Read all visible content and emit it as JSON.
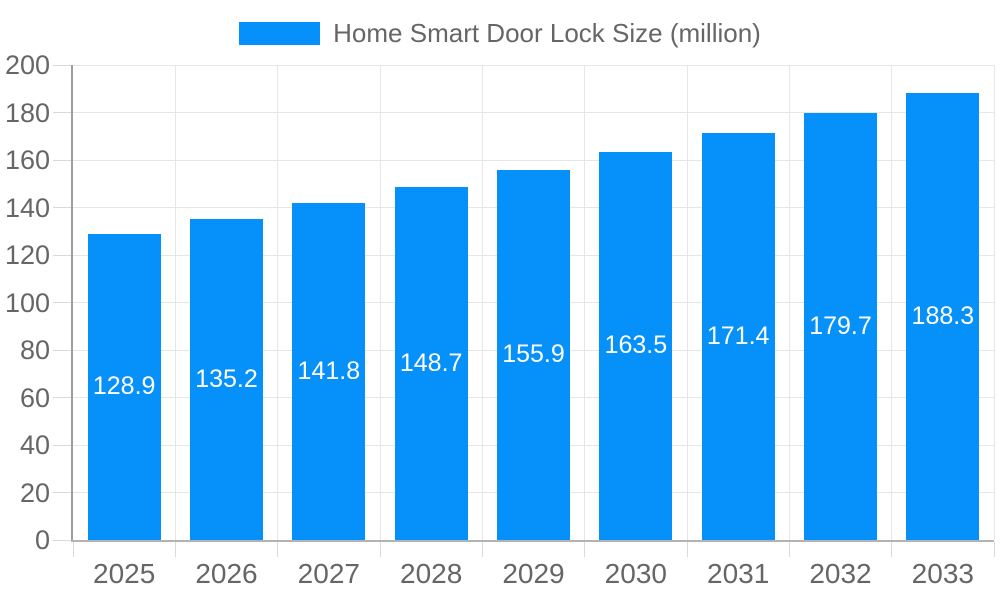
{
  "chart_data": {
    "type": "bar",
    "title": "Home Smart Door Lock Size (million)",
    "categories": [
      "2025",
      "2026",
      "2027",
      "2028",
      "2029",
      "2030",
      "2031",
      "2032",
      "2033"
    ],
    "series": [
      {
        "name": "Home Smart Door Lock Size (million)",
        "values": [
          128.9,
          135.2,
          141.8,
          148.7,
          155.9,
          163.5,
          171.4,
          179.7,
          188.3
        ]
      }
    ],
    "value_label_decimals": 1,
    "xlabel": "",
    "ylabel": "",
    "ylim": [
      0,
      200
    ],
    "yticks": [
      0,
      20,
      40,
      60,
      80,
      100,
      120,
      140,
      160,
      180,
      200
    ],
    "grid": true,
    "legend_position": "top-center",
    "colors": {
      "bar": "#0590fa",
      "value_label": "#ffffff",
      "axis_text": "#666666",
      "gridline": "#e6e6e6",
      "axis_line": "#a6a6a6",
      "background": "#ffffff"
    }
  }
}
